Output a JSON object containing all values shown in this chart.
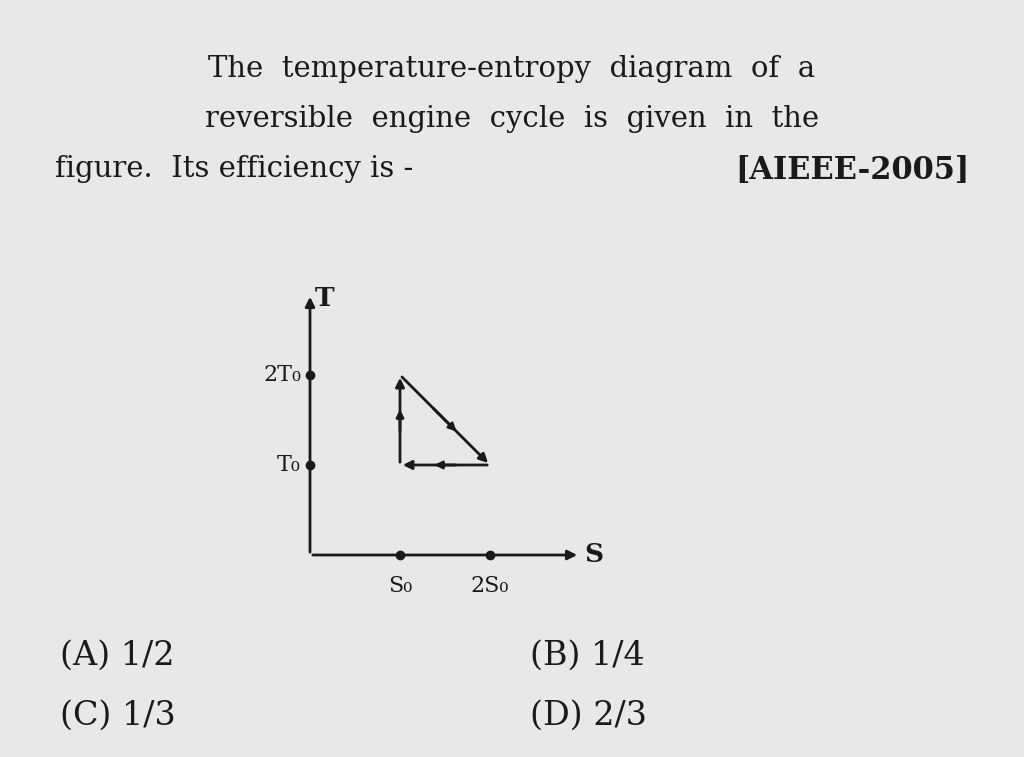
{
  "background_color": "#e8e8e8",
  "text_color": "#1a1a1a",
  "line1": "The  temperature-entropy  diagram  of  a",
  "line2": "reversible  engine  cycle  is  given  in  the",
  "line3_left": "figure.  Its efficiency is -",
  "line3_right": "[AIEEE-2005]",
  "options": [
    "(A) 1/2",
    "(B) 1/4",
    "(C) 1/3",
    "(D) 2/3"
  ],
  "axis_xlabel": "S",
  "axis_ylabel": "T",
  "tick_labels_x": [
    [
      "S₀",
      1
    ],
    [
      "2S₀",
      2
    ]
  ],
  "tick_labels_y": [
    [
      "T₀",
      1
    ],
    [
      "2T₀",
      2
    ]
  ],
  "arrow_color": "#1a1a1a",
  "axis_color": "#1a1a1a",
  "dot_color": "#1a1a1a",
  "fontsize_title": 21,
  "fontsize_tag": 22,
  "fontsize_options": 24,
  "fontsize_axis_labels": 17,
  "fontsize_tick_labels": 15
}
